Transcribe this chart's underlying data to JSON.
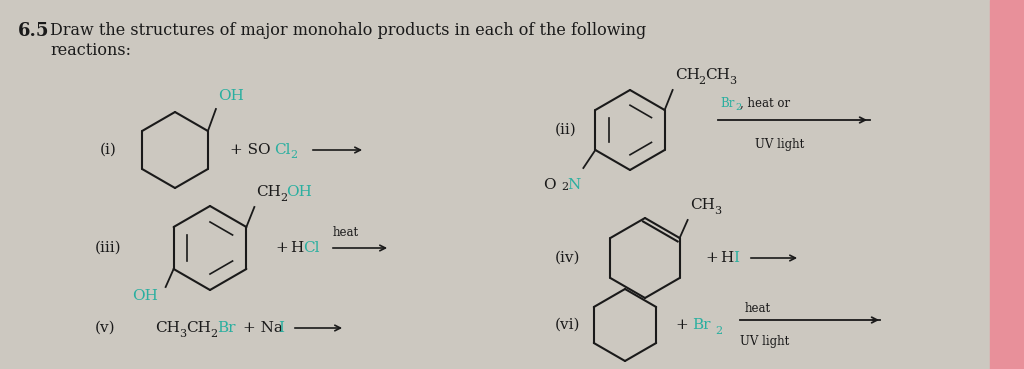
{
  "bg_color": "#ccc8c0",
  "text_color": "#1a1a1a",
  "teal_color": "#2aafa0",
  "pink_color": "#e8909a",
  "label_fontsize": 11,
  "chem_fontsize": 11,
  "small_fontsize": 8.5,
  "title_bold": "6.5",
  "title_rest": " Draw the structures of major monohalo products in each of the following",
  "title_line2": "      reactions:"
}
